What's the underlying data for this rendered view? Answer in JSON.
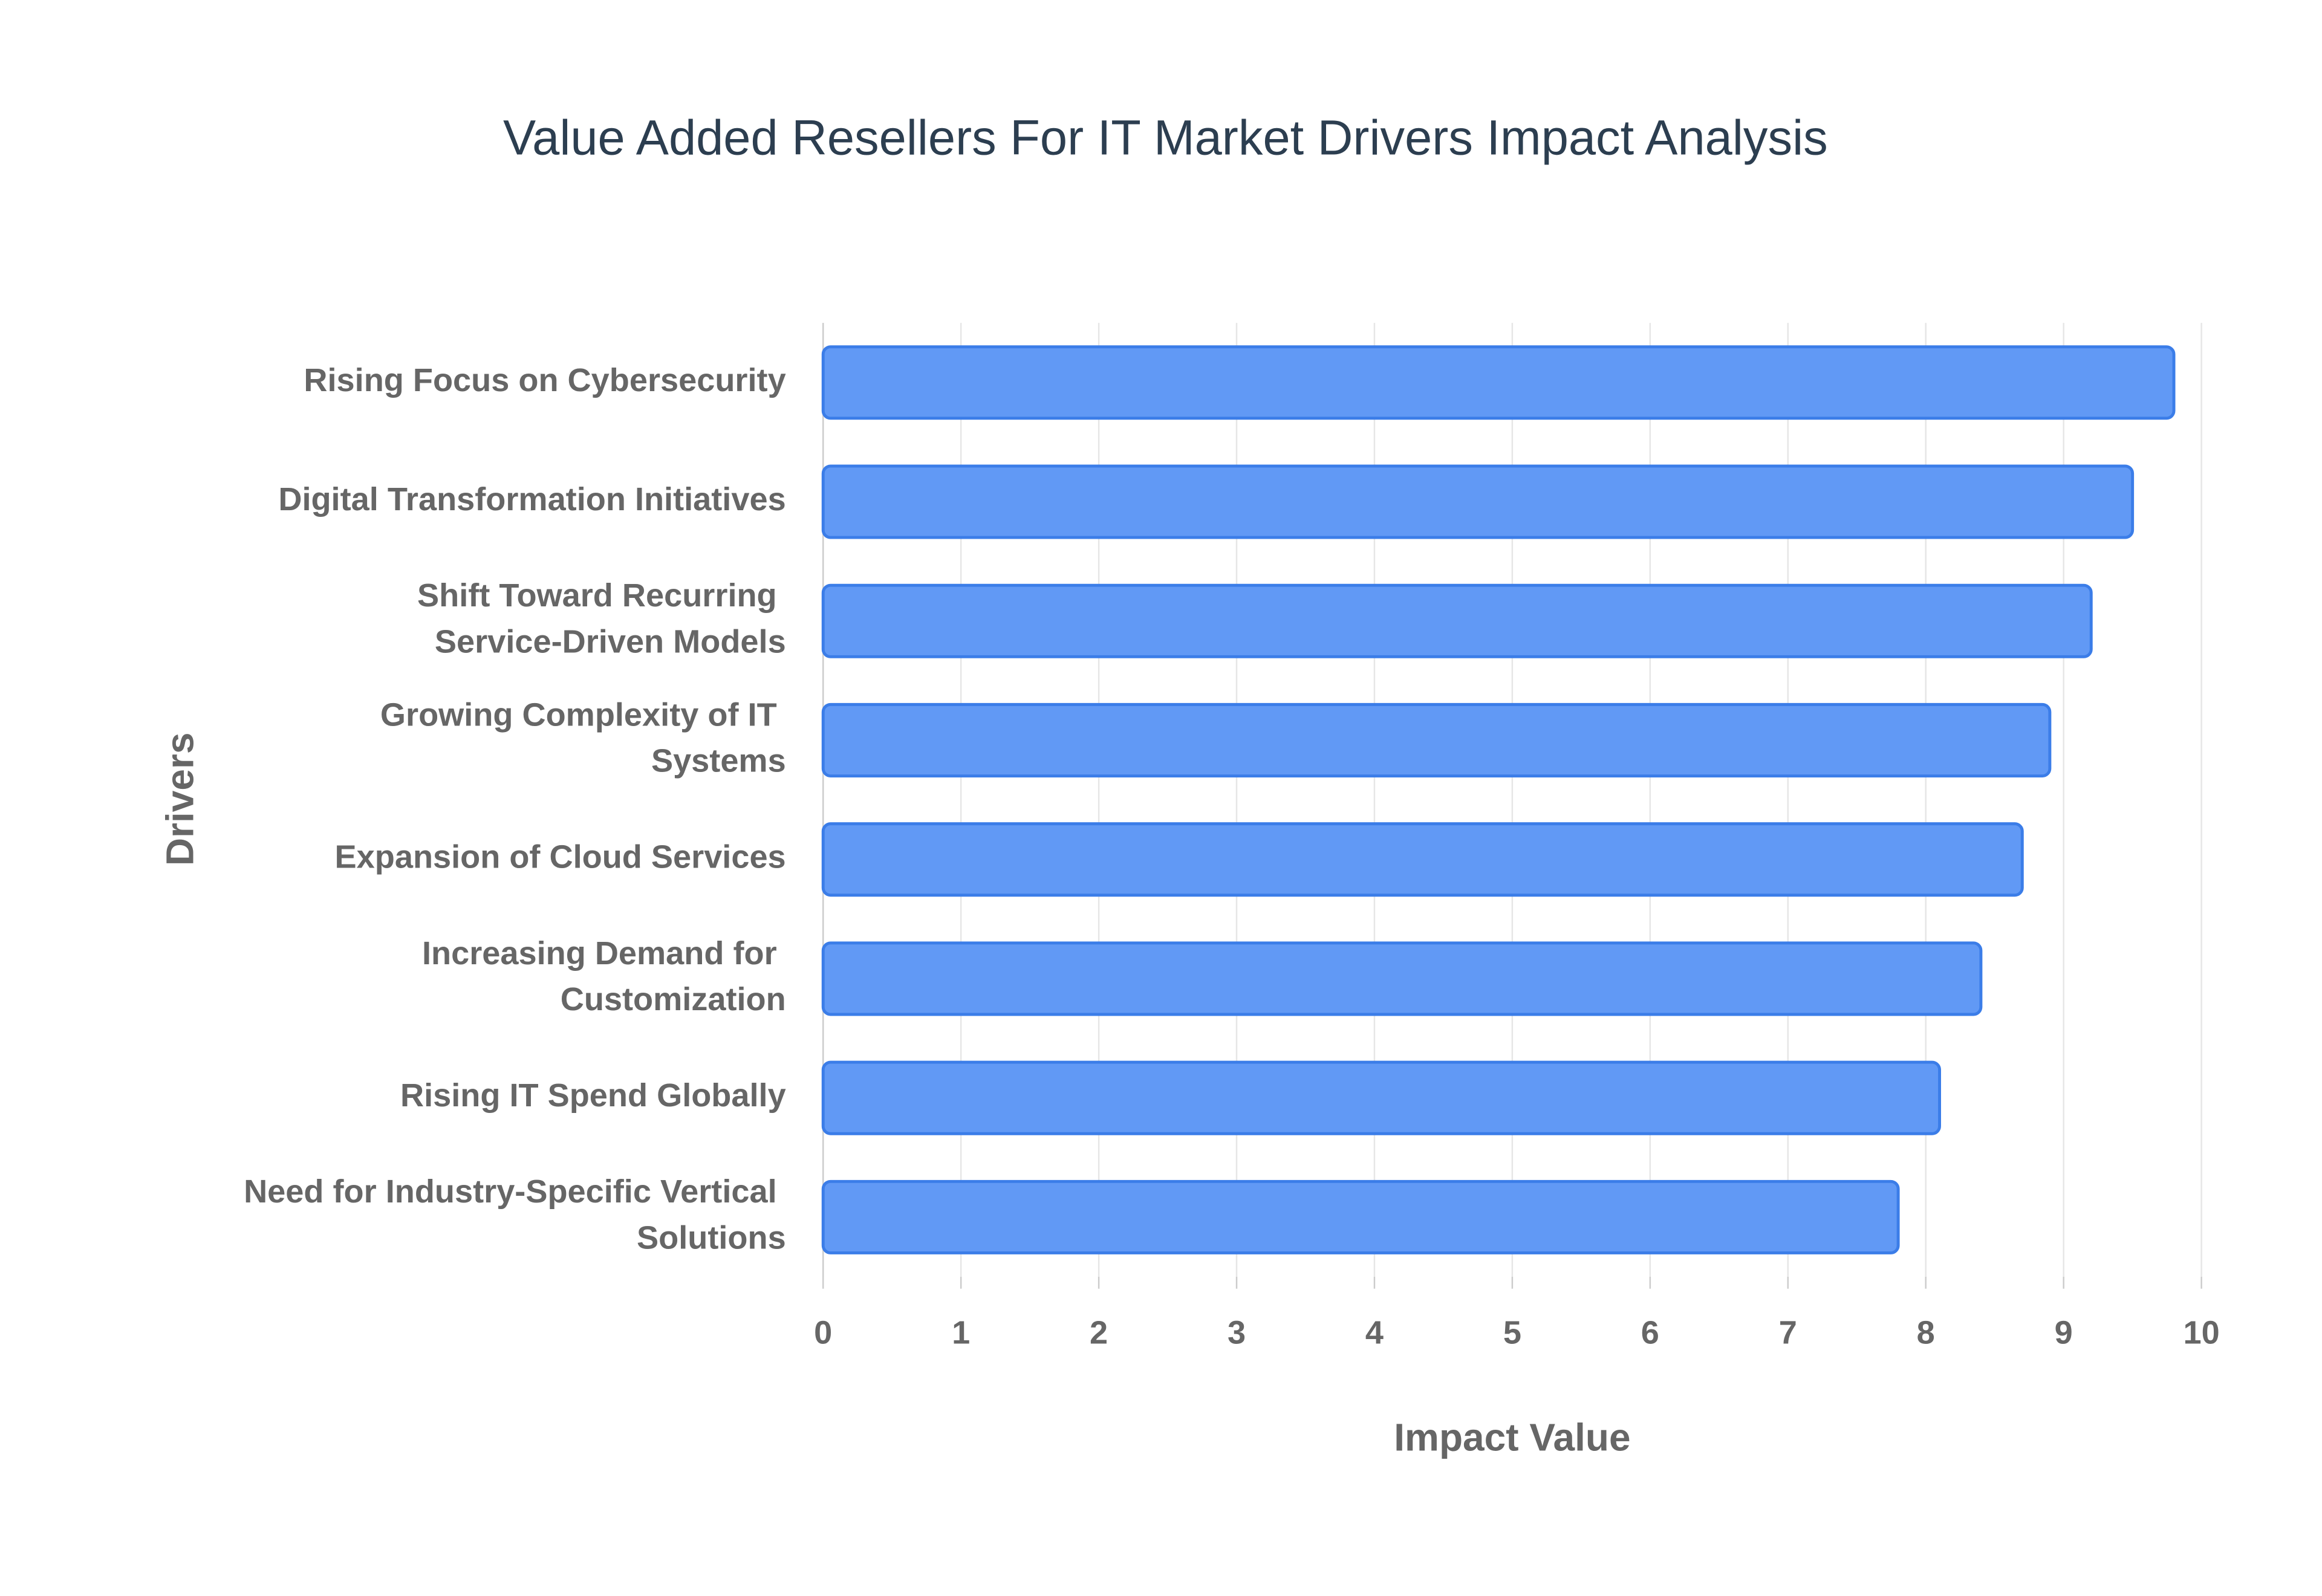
{
  "chart_data": {
    "type": "bar",
    "orientation": "horizontal",
    "title": "Value Added Resellers For IT Market Drivers Impact Analysis",
    "x_label": "Impact Value",
    "y_label": "Drivers",
    "categories": [
      "Rising Focus on Cybersecurity",
      "Digital Transformation Initiatives",
      "Shift Toward Recurring Service-Driven Models",
      "Growing Complexity of IT Systems",
      "Expansion of Cloud Services",
      "Increasing Demand for Customization",
      "Rising IT Spend Globally",
      "Need for Industry-Specific Vertical Solutions"
    ],
    "values": [
      9.8,
      9.5,
      9.2,
      8.9,
      8.7,
      8.4,
      8.1,
      7.8
    ],
    "color": "#6199f5",
    "xlim": [
      0,
      10
    ],
    "xticks": [
      0,
      1,
      2,
      3,
      4,
      5,
      6,
      7,
      8,
      9,
      10
    ],
    "grid": true
  }
}
